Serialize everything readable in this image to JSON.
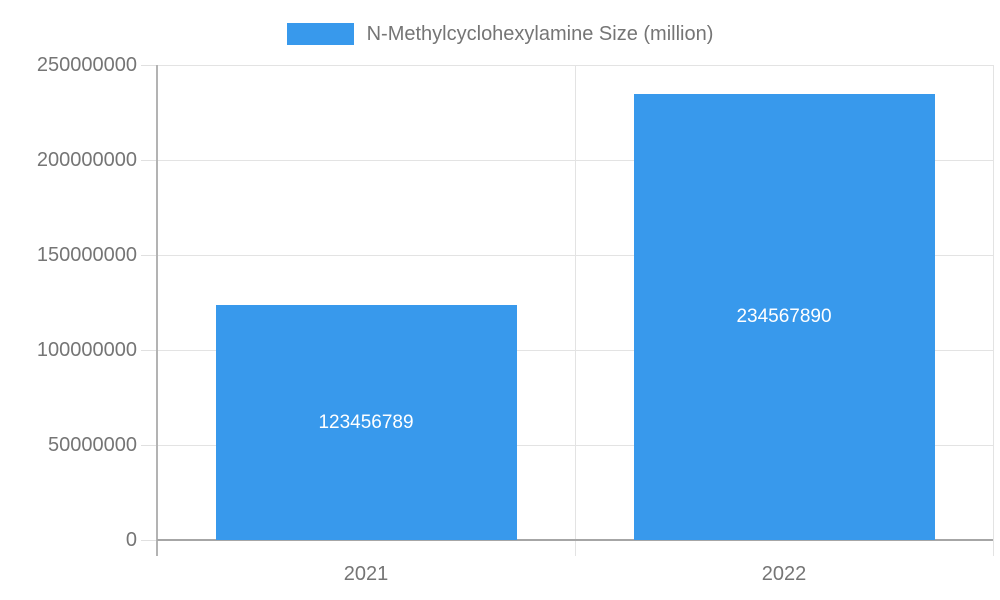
{
  "legend": {
    "label": "N-Methylcyclohexylamine Size (million)"
  },
  "colors": {
    "bar": "#3899ec",
    "axis_x": "#a6a6a6",
    "axis_y": "#b3b3b3",
    "grid": "#e3e3e3",
    "tick_connector": "#e0e0e0",
    "tick_text": "#757575",
    "bar_label_text": "#ffffff",
    "background": "#ffffff"
  },
  "chart_data": {
    "type": "bar",
    "title": "",
    "xlabel": "",
    "ylabel": "",
    "categories": [
      "2021",
      "2022"
    ],
    "series": [
      {
        "name": "N-Methylcyclohexylamine Size (million)",
        "values": [
          123456789,
          234567890
        ],
        "value_labels": [
          "123456789",
          "234567890"
        ]
      }
    ],
    "y_ticks": [
      0,
      50000000,
      100000000,
      150000000,
      200000000,
      250000000
    ],
    "y_tick_labels": [
      "0",
      "50000000",
      "100000000",
      "150000000",
      "200000000",
      "250000000"
    ],
    "ylim": [
      0,
      250000000
    ],
    "grid": true,
    "legend_position": "top",
    "bar_label_position": "center-inside"
  }
}
